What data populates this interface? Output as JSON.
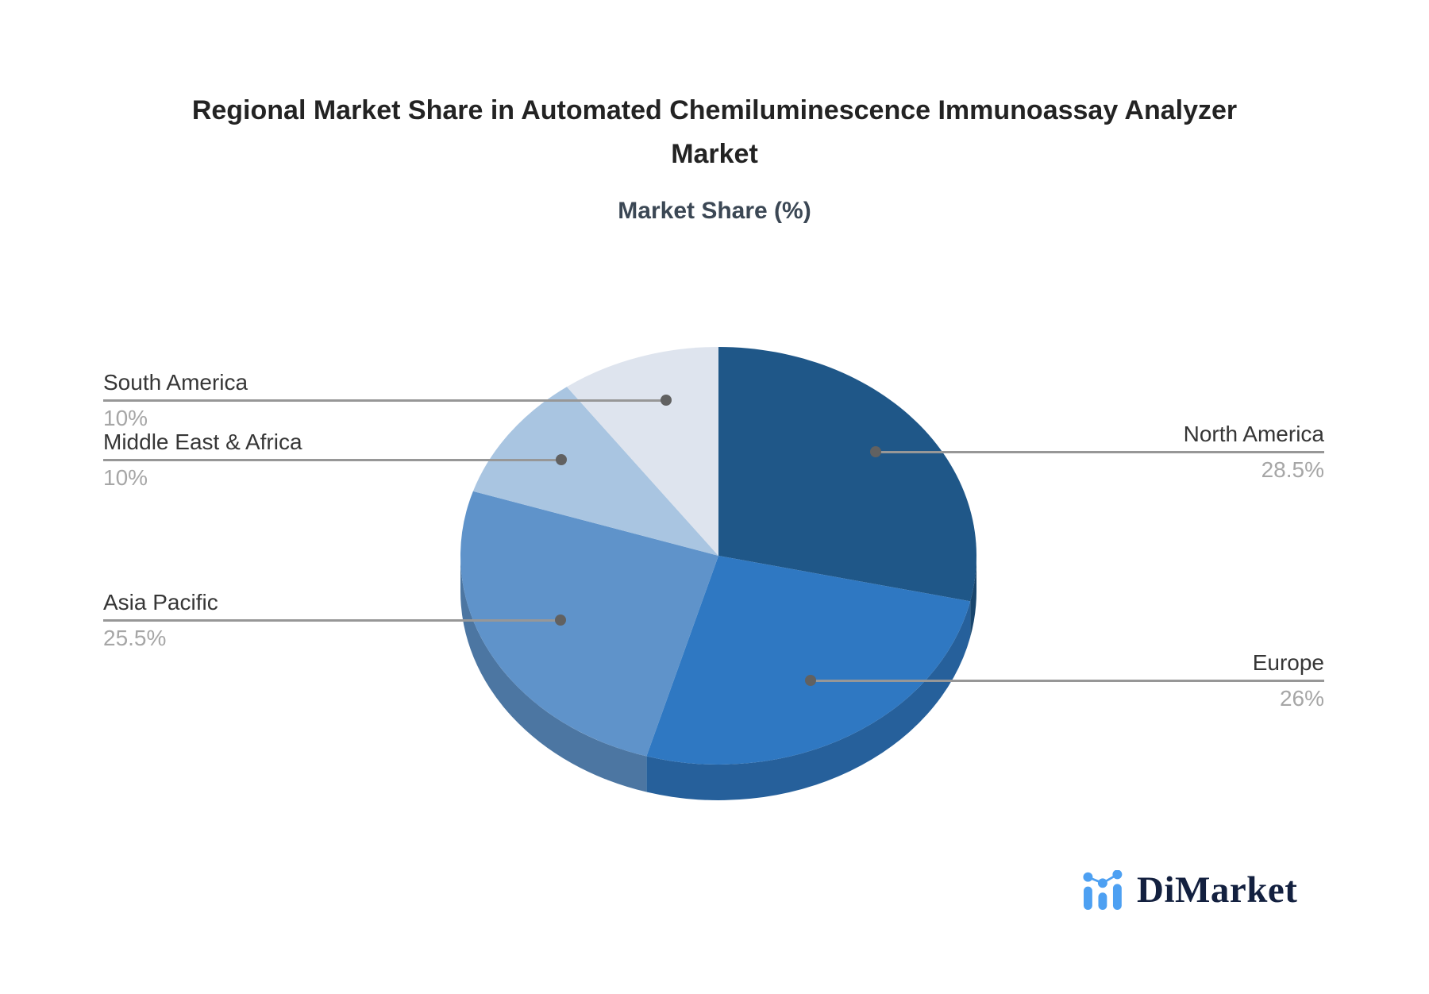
{
  "title": "Regional Market Share in Automated Chemiluminescence Immunoassay Analyzer Market",
  "subtitle": "Market Share (%)",
  "brand": {
    "name": "DiMarket",
    "icon": "bar-chart-logo-icon",
    "icon_color": "#4DA0F2",
    "text_color": "#13203F"
  },
  "chart_data": {
    "type": "pie",
    "title": "Regional Market Share in Automated Chemiluminescence Immunoassay Analyzer Market",
    "subtitle": "Market Share (%)",
    "unit": "%",
    "style": "3d-pie",
    "direction": "clockwise",
    "start_angle_deg": 0,
    "legend_position": "callout-labels",
    "colors": {
      "leader_line": "#979797",
      "leader_dot": "#616161",
      "label_text": "#363636",
      "value_text": "#A6A6A6"
    },
    "slices": [
      {
        "label": "North America",
        "value": 28.5,
        "display": "28.5%",
        "color": "#1F5788"
      },
      {
        "label": "Europe",
        "value": 26,
        "display": "26%",
        "color": "#2F78C2"
      },
      {
        "label": "Asia Pacific",
        "value": 25.5,
        "display": "25.5%",
        "color": "#5F93CA"
      },
      {
        "label": "Middle East & Africa",
        "value": 10,
        "display": "10%",
        "color": "#A9C5E1"
      },
      {
        "label": "South America",
        "value": 10,
        "display": "10%",
        "color": "#DEE4EE"
      }
    ]
  }
}
